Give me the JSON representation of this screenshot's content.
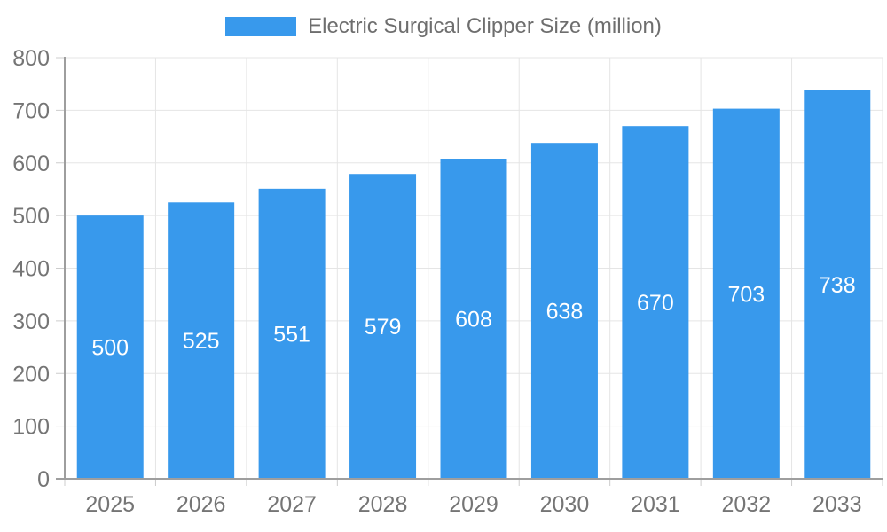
{
  "chart_data": {
    "type": "bar",
    "title": "Electric Surgical Clipper Size (million)",
    "categories": [
      "2025",
      "2026",
      "2027",
      "2028",
      "2029",
      "2030",
      "2031",
      "2032",
      "2033"
    ],
    "values": [
      500,
      525,
      551,
      579,
      608,
      638,
      670,
      703,
      738
    ],
    "xlabel": "",
    "ylabel": "",
    "ylim": [
      0,
      800
    ],
    "y_ticks": [
      0,
      100,
      200,
      300,
      400,
      500,
      600,
      700,
      800
    ],
    "grid": true,
    "legend_position": "top-center",
    "colors": {
      "bar": "#3899ec",
      "bar_label": "#ffffff",
      "axis_line": "#9e9e9e",
      "gridline": "#e5e5e5",
      "tick": "#cccccc",
      "axis_text": "#757575",
      "legend_text": "#6e6e6e",
      "background": "#ffffff"
    }
  }
}
